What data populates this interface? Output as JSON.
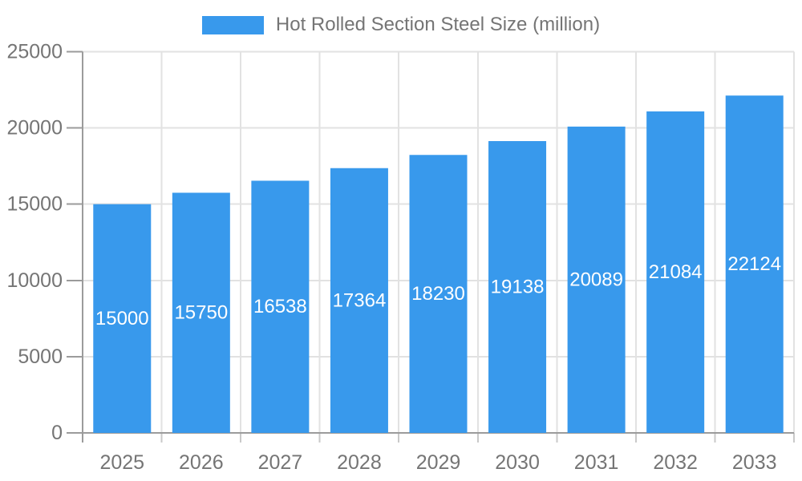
{
  "chart_data": {
    "type": "bar",
    "legend_label": "Hot Rolled Section Steel Size (million)",
    "categories": [
      "2025",
      "2026",
      "2027",
      "2028",
      "2029",
      "2030",
      "2031",
      "2032",
      "2033"
    ],
    "values": [
      15000,
      15750,
      16538,
      17364,
      18230,
      19138,
      20089,
      21084,
      22124
    ],
    "yticks": [
      0,
      5000,
      10000,
      15000,
      20000,
      25000
    ],
    "ylim": [
      0,
      25000
    ],
    "grid": "both",
    "legend_position": "top-center",
    "value_labels": "inside-center-white",
    "colors": {
      "bar": "#3899ec",
      "grid": "#e2e2e2",
      "axis": "#9b9b9b",
      "tick_label": "#757575",
      "value_label": "#ffffff",
      "background": "#ffffff"
    }
  }
}
